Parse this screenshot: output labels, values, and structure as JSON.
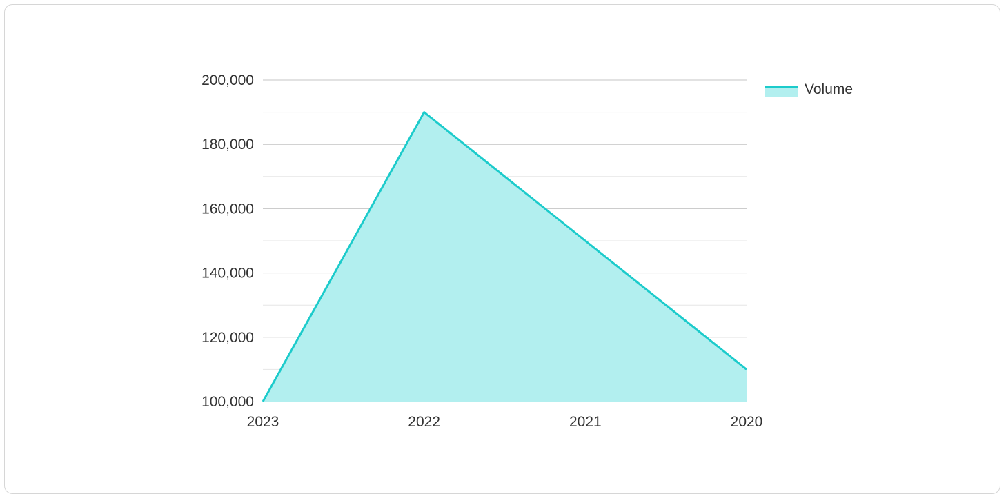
{
  "chart_data": {
    "type": "area",
    "title": "",
    "xlabel": "",
    "ylabel": "",
    "categories": [
      "2023",
      "2022",
      "2021",
      "2020"
    ],
    "series": [
      {
        "name": "Volume",
        "values": [
          100000,
          190000,
          150000,
          110000
        ],
        "line_color": "#1ccbcb",
        "fill_color": "#b2efef"
      }
    ],
    "ylim": [
      100000,
      200000
    ],
    "y_ticks": [
      {
        "value": 100000,
        "label": "100,000"
      },
      {
        "value": 120000,
        "label": "120,000"
      },
      {
        "value": 140000,
        "label": "140,000"
      },
      {
        "value": 160000,
        "label": "160,000"
      },
      {
        "value": 180000,
        "label": "180,000"
      },
      {
        "value": 200000,
        "label": "200,000"
      }
    ],
    "y_minor_step": 10000,
    "grid": true,
    "legend_position": "top-right"
  },
  "colors": {
    "major_grid": "#c4c4c4",
    "minor_grid": "#e6e6e6"
  }
}
